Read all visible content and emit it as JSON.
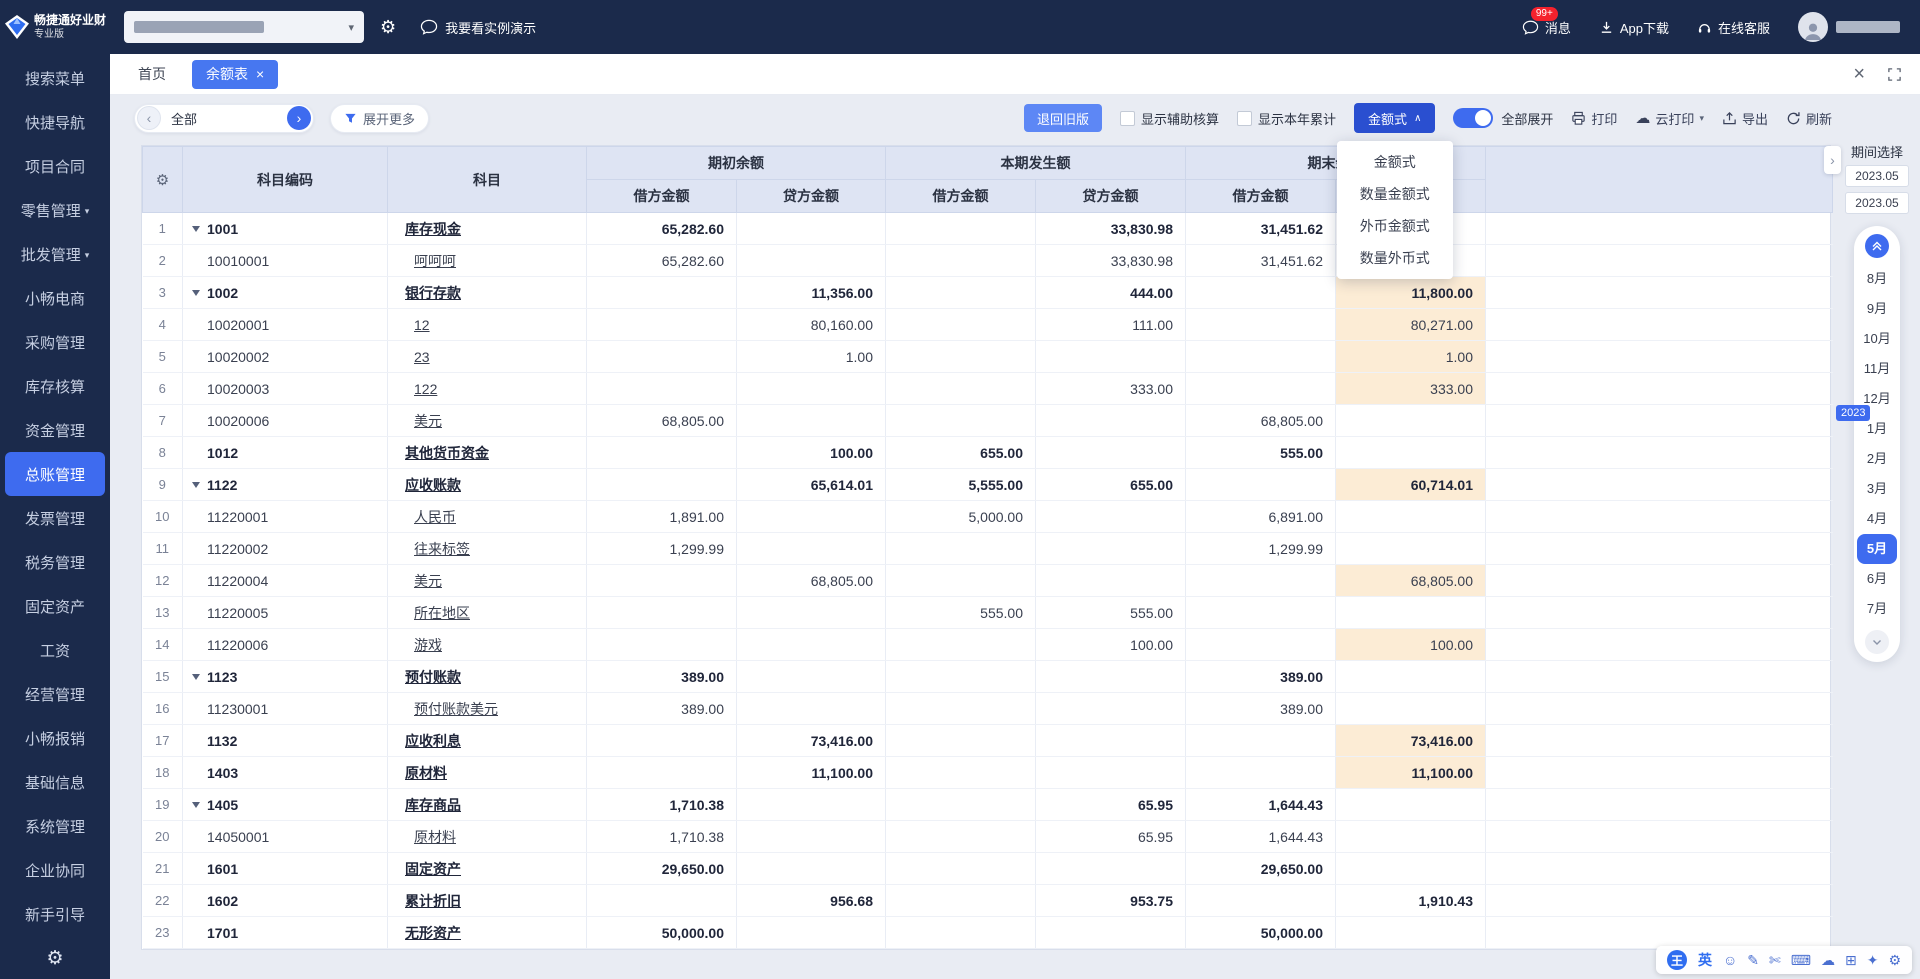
{
  "colors": {
    "accent": "#3e6bef",
    "navy": "#1b2a4b",
    "highlight": "#fcecd5",
    "badge_red": "#f5222d"
  },
  "sidebar": {
    "logo_title": "畅捷通好业财",
    "logo_subtitle": "专业版",
    "items": [
      {
        "id": "search-menu",
        "label": "搜索菜单"
      },
      {
        "id": "quick-nav",
        "label": "快捷导航"
      },
      {
        "id": "project-contract",
        "label": "项目合同"
      },
      {
        "id": "retail-mgmt",
        "label": "零售管理",
        "arrow": true
      },
      {
        "id": "wholesale-mgmt",
        "label": "批发管理",
        "arrow": true
      },
      {
        "id": "ecommerce",
        "label": "小畅电商"
      },
      {
        "id": "purchase-mgmt",
        "label": "采购管理"
      },
      {
        "id": "inventory-accounting",
        "label": "库存核算"
      },
      {
        "id": "fund-mgmt",
        "label": "资金管理"
      },
      {
        "id": "general-ledger",
        "label": "总账管理",
        "active": true
      },
      {
        "id": "invoice-mgmt",
        "label": "发票管理"
      },
      {
        "id": "tax-mgmt",
        "label": "税务管理"
      },
      {
        "id": "fixed-assets",
        "label": "固定资产"
      },
      {
        "id": "payroll",
        "label": "工资"
      },
      {
        "id": "operation-mgmt",
        "label": "经营管理"
      },
      {
        "id": "expense",
        "label": "小畅报销"
      },
      {
        "id": "base-info",
        "label": "基础信息"
      },
      {
        "id": "system-mgmt",
        "label": "系统管理"
      },
      {
        "id": "enterprise-collab",
        "label": "企业协同"
      },
      {
        "id": "beginner-guide",
        "label": "新手引导"
      }
    ]
  },
  "topbar": {
    "demo_link": "我要看实例演示",
    "messages_label": "消息",
    "messages_badge": "99+",
    "app_download_label": "App下载",
    "support_label": "在线客服"
  },
  "tabs": [
    {
      "id": "home",
      "label": "首页"
    },
    {
      "id": "balance-sheet",
      "label": "余额表",
      "active": true,
      "closable": true
    }
  ],
  "toolbar": {
    "filter_all": "全部",
    "expand_more": "展开更多",
    "back_old_label": "退回旧版",
    "aux_checkbox_label": "显示辅助核算",
    "year_total_checkbox_label": "显示本年累计",
    "format_label": "金额式",
    "toggle_label": "全部展开",
    "print_label": "打印",
    "cloud_print_label": "云打印",
    "export_label": "导出",
    "refresh_label": "刷新"
  },
  "format_menu": {
    "items": [
      "金额式",
      "数量金额式",
      "外币金额式",
      "数量外币式"
    ]
  },
  "table": {
    "group_headers": [
      "期初余额",
      "本期发生额",
      "期末余额"
    ],
    "headers": {
      "code": "科目编码",
      "name": "科目",
      "debit": "借方金额",
      "credit": "贷方金额"
    },
    "rows": [
      {
        "num": 1,
        "code": "1001",
        "name": "库存现金",
        "expand": true,
        "bold": true,
        "cells": [
          "65,282.60",
          "",
          "",
          "33,830.98",
          "31,451.62",
          ""
        ],
        "hl": []
      },
      {
        "num": 2,
        "code": "10010001",
        "name": "呵呵呵",
        "child": true,
        "cells": [
          "65,282.60",
          "",
          "",
          "33,830.98",
          "31,451.62",
          ""
        ],
        "hl": []
      },
      {
        "num": 3,
        "code": "1002",
        "name": "银行存款",
        "expand": true,
        "bold": true,
        "cells": [
          "",
          "11,356.00",
          "",
          "444.00",
          "",
          "11,800.00"
        ],
        "hl": [
          5
        ]
      },
      {
        "num": 4,
        "code": "10020001",
        "name": "12",
        "child": true,
        "cells": [
          "",
          "80,160.00",
          "",
          "111.00",
          "",
          "80,271.00"
        ],
        "hl": [
          5
        ]
      },
      {
        "num": 5,
        "code": "10020002",
        "name": "23",
        "child": true,
        "cells": [
          "",
          "1.00",
          "",
          "",
          "",
          "1.00"
        ],
        "hl": [
          5
        ]
      },
      {
        "num": 6,
        "code": "10020003",
        "name": "122",
        "child": true,
        "cells": [
          "",
          "",
          "",
          "333.00",
          "",
          "333.00"
        ],
        "hl": [
          5
        ]
      },
      {
        "num": 7,
        "code": "10020006",
        "name": "美元",
        "child": true,
        "cells": [
          "68,805.00",
          "",
          "",
          "",
          "68,805.00",
          ""
        ],
        "hl": []
      },
      {
        "num": 8,
        "code": "1012",
        "name": "其他货币资金",
        "bold": true,
        "cells": [
          "",
          "100.00",
          "655.00",
          "",
          "555.00",
          ""
        ],
        "hl": []
      },
      {
        "num": 9,
        "code": "1122",
        "name": "应收账款",
        "expand": true,
        "bold": true,
        "cells": [
          "",
          "65,614.01",
          "5,555.00",
          "655.00",
          "",
          "60,714.01"
        ],
        "hl": [
          5
        ]
      },
      {
        "num": 10,
        "code": "11220001",
        "name": "人民币",
        "child": true,
        "cells": [
          "1,891.00",
          "",
          "5,000.00",
          "",
          "6,891.00",
          ""
        ],
        "hl": []
      },
      {
        "num": 11,
        "code": "11220002",
        "name": "往来标签",
        "child": true,
        "cells": [
          "1,299.99",
          "",
          "",
          "",
          "1,299.99",
          ""
        ],
        "hl": []
      },
      {
        "num": 12,
        "code": "11220004",
        "name": "美元",
        "child": true,
        "cells": [
          "",
          "68,805.00",
          "",
          "",
          "",
          "68,805.00"
        ],
        "hl": [
          5
        ]
      },
      {
        "num": 13,
        "code": "11220005",
        "name": "所在地区",
        "child": true,
        "cells": [
          "",
          "",
          "555.00",
          "555.00",
          "",
          ""
        ],
        "hl": []
      },
      {
        "num": 14,
        "code": "11220006",
        "name": "游戏",
        "child": true,
        "cells": [
          "",
          "",
          "",
          "100.00",
          "",
          "100.00"
        ],
        "hl": [
          5
        ]
      },
      {
        "num": 15,
        "code": "1123",
        "name": "预付账款",
        "expand": true,
        "bold": true,
        "cells": [
          "389.00",
          "",
          "",
          "",
          "389.00",
          ""
        ],
        "hl": []
      },
      {
        "num": 16,
        "code": "11230001",
        "name": "预付账款美元",
        "child": true,
        "cells": [
          "389.00",
          "",
          "",
          "",
          "389.00",
          ""
        ],
        "hl": []
      },
      {
        "num": 17,
        "code": "1132",
        "name": "应收利息",
        "bold": true,
        "cells": [
          "",
          "73,416.00",
          "",
          "",
          "",
          "73,416.00"
        ],
        "hl": [
          5
        ]
      },
      {
        "num": 18,
        "code": "1403",
        "name": "原材料",
        "bold": true,
        "cells": [
          "",
          "11,100.00",
          "",
          "",
          "",
          "11,100.00"
        ],
        "hl": [
          5
        ]
      },
      {
        "num": 19,
        "code": "1405",
        "name": "库存商品",
        "expand": true,
        "bold": true,
        "cells": [
          "1,710.38",
          "",
          "",
          "65.95",
          "1,644.43",
          ""
        ],
        "hl": []
      },
      {
        "num": 20,
        "code": "14050001",
        "name": "原材料",
        "child": true,
        "cells": [
          "1,710.38",
          "",
          "",
          "65.95",
          "1,644.43",
          ""
        ],
        "hl": []
      },
      {
        "num": 21,
        "code": "1601",
        "name": "固定资产",
        "bold": true,
        "cells": [
          "29,650.00",
          "",
          "",
          "",
          "29,650.00",
          ""
        ],
        "hl": []
      },
      {
        "num": 22,
        "code": "1602",
        "name": "累计折旧",
        "bold": true,
        "cells": [
          "",
          "956.68",
          "",
          "953.75",
          "",
          "1,910.43"
        ],
        "hl": []
      },
      {
        "num": 23,
        "code": "1701",
        "name": "无形资产",
        "bold": true,
        "cells": [
          "50,000.00",
          "",
          "",
          "",
          "50,000.00",
          ""
        ],
        "hl": []
      }
    ]
  },
  "period_panel": {
    "title": "期间选择",
    "date_from": "2023.05",
    "date_to": "2023.05",
    "year_badge": "2023",
    "months": [
      "8月",
      "9月",
      "10月",
      "11月",
      "12月",
      "1月",
      "2月",
      "3月",
      "4月",
      "5月",
      "6月",
      "7月"
    ],
    "active_month": "5月"
  },
  "ime": {
    "logo": "王",
    "lang": "英",
    "icons": [
      {
        "glyph": "☺",
        "name": "emoji-icon"
      },
      {
        "glyph": "✎",
        "name": "pencil-icon"
      },
      {
        "glyph": "✄",
        "name": "scissors-icon"
      },
      {
        "glyph": "⌨",
        "name": "keyboard-icon"
      },
      {
        "glyph": "☁",
        "name": "cloud-icon"
      },
      {
        "glyph": "⊞",
        "name": "grid-icon"
      },
      {
        "glyph": "✦",
        "name": "star-icon"
      },
      {
        "glyph": "⚙",
        "name": "ime-settings-icon"
      }
    ]
  }
}
